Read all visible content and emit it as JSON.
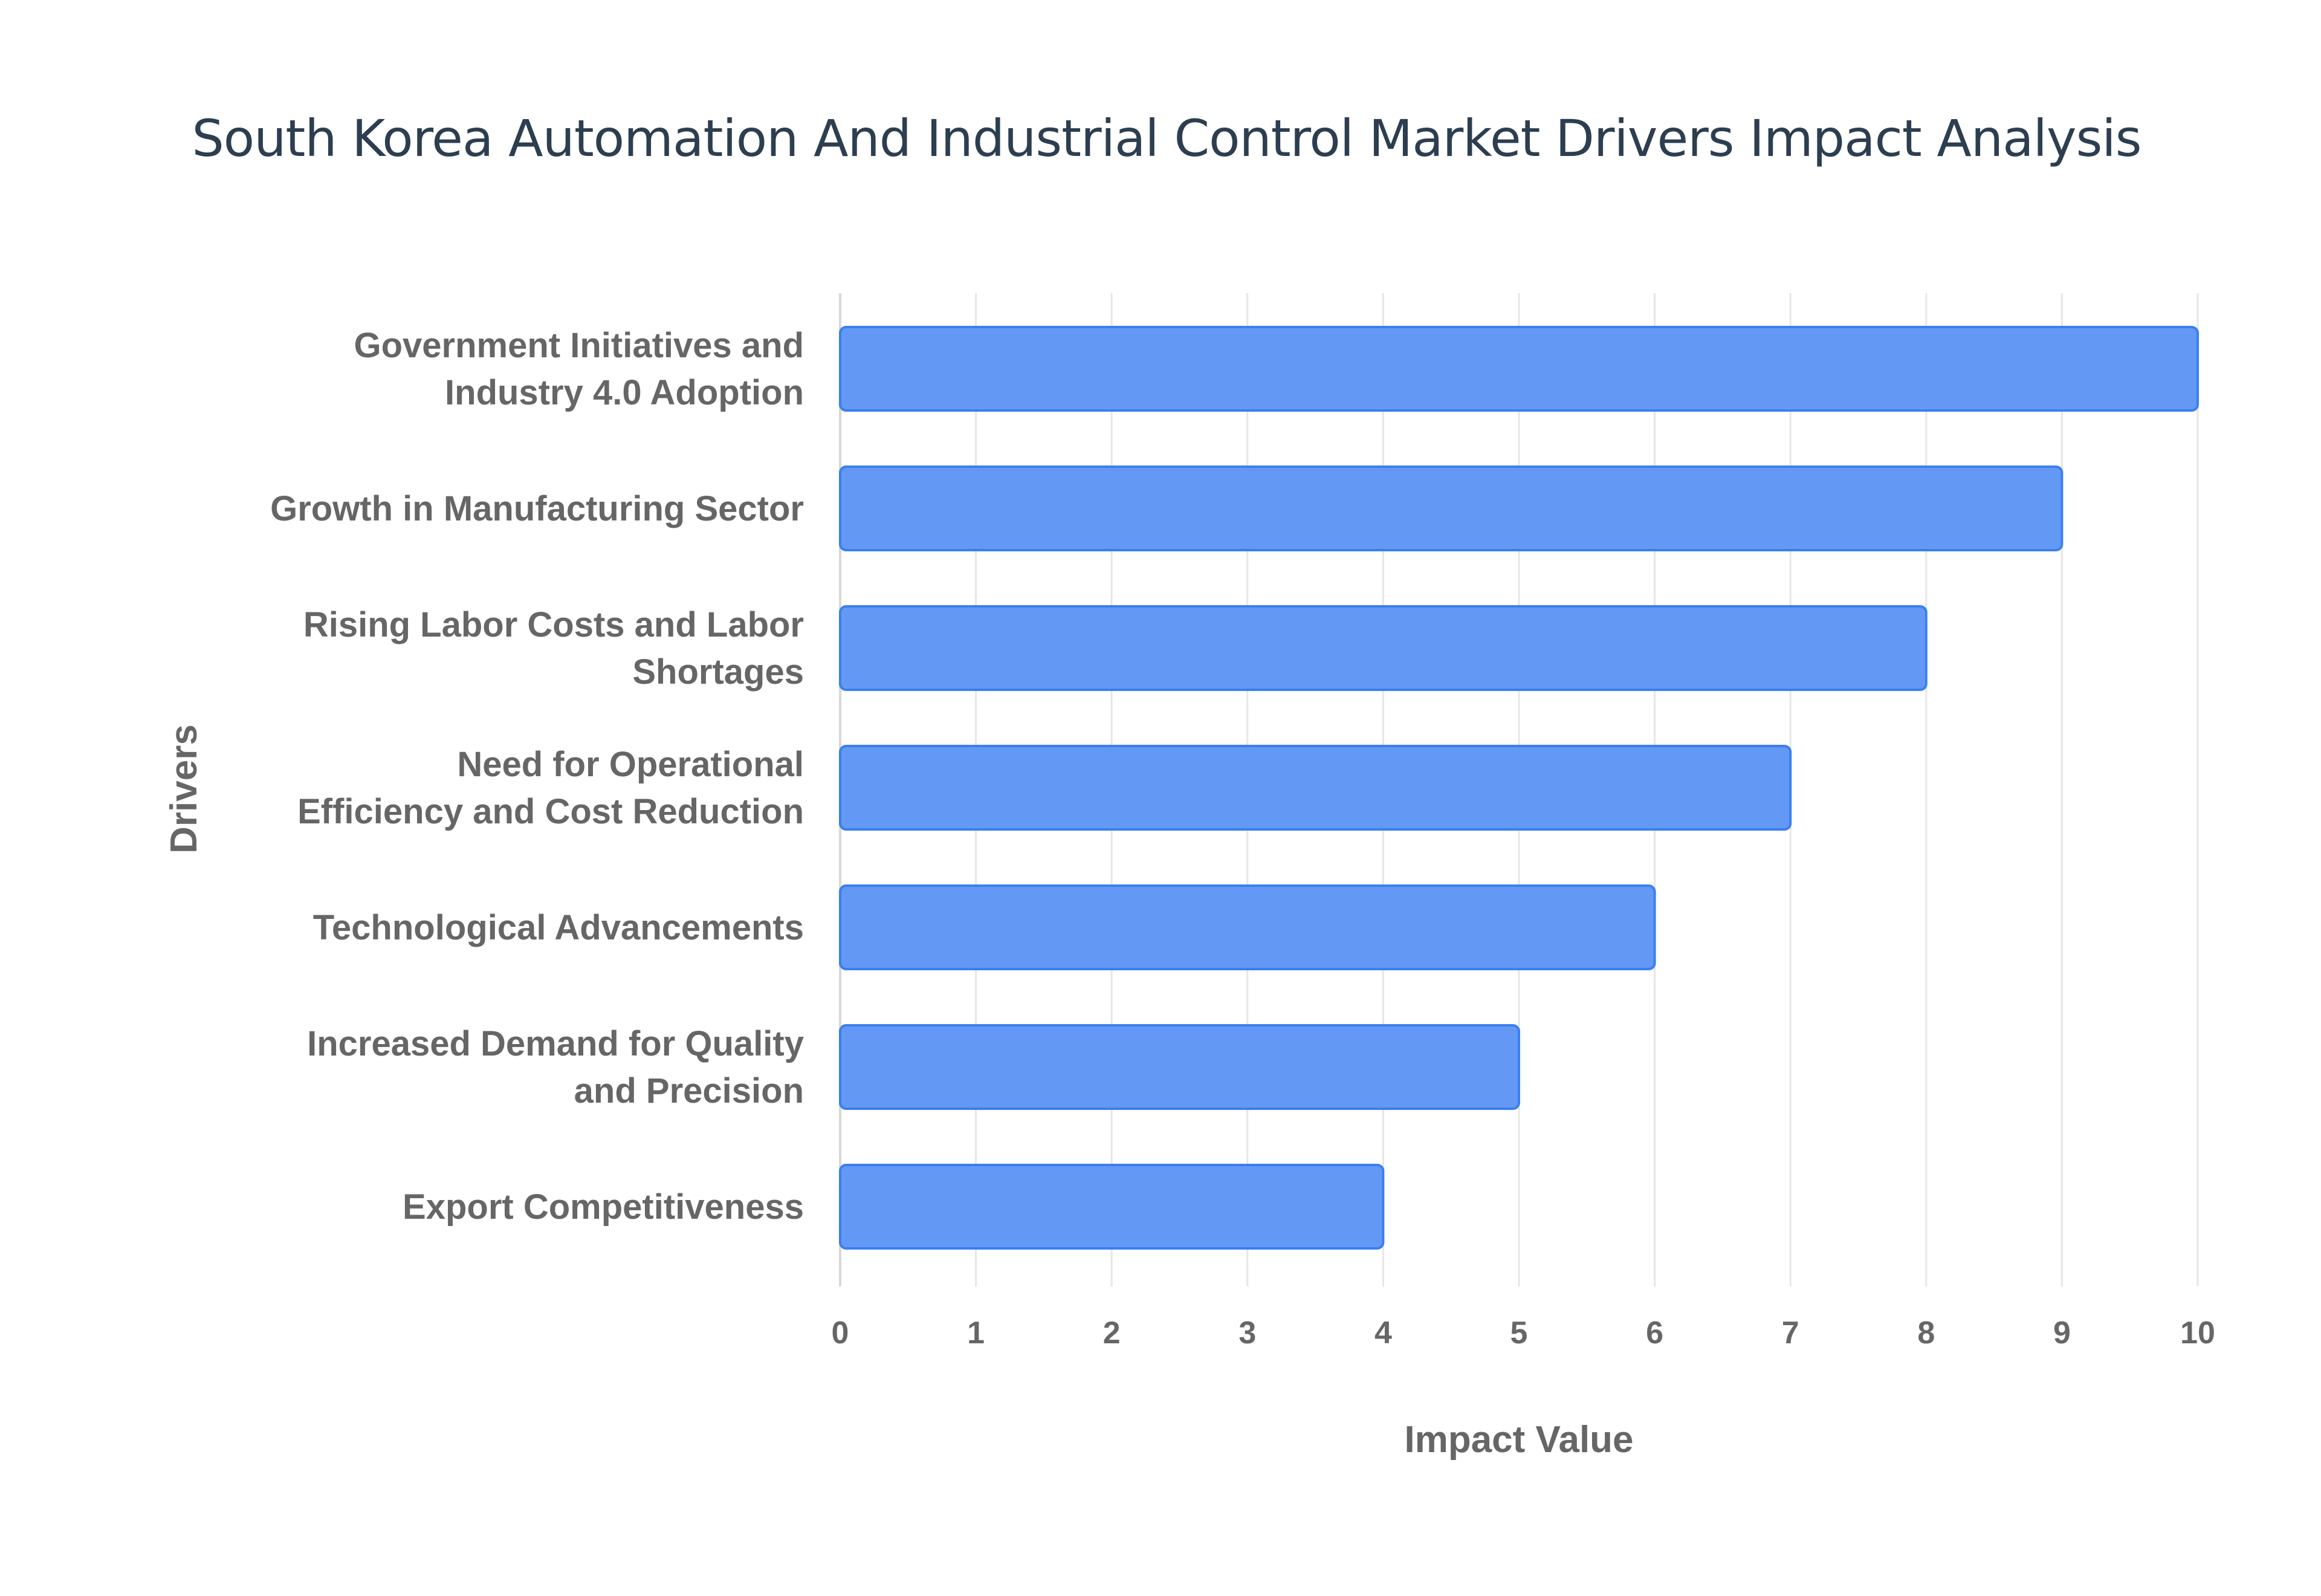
{
  "chart_data": {
    "type": "bar",
    "orientation": "horizontal",
    "title": "South Korea Automation And Industrial Control Market Drivers Impact Analysis",
    "xlabel": "Impact Value",
    "ylabel": "Drivers",
    "xlim": [
      0,
      10
    ],
    "xticks": [
      "0",
      "1",
      "2",
      "3",
      "4",
      "5",
      "6",
      "7",
      "8",
      "9",
      "10"
    ],
    "grid": true,
    "categories": [
      [
        "Government Initiatives and",
        "Industry 4.0 Adoption"
      ],
      [
        "Growth in Manufacturing Sector"
      ],
      [
        "Rising Labor Costs and Labor",
        "Shortages"
      ],
      [
        "Need for Operational",
        "Efficiency and Cost Reduction"
      ],
      [
        "Technological Advancements"
      ],
      [
        "Increased Demand for Quality",
        "and Precision"
      ],
      [
        "Export Competitiveness"
      ]
    ],
    "values": [
      10,
      9,
      8,
      7,
      6,
      5,
      4
    ],
    "colors": {
      "bar_fill": "#6399f5",
      "bar_edge": "#3b7ff0",
      "grid": "#e6e6e6",
      "text": "#666666",
      "title": "#2c3e50"
    }
  }
}
